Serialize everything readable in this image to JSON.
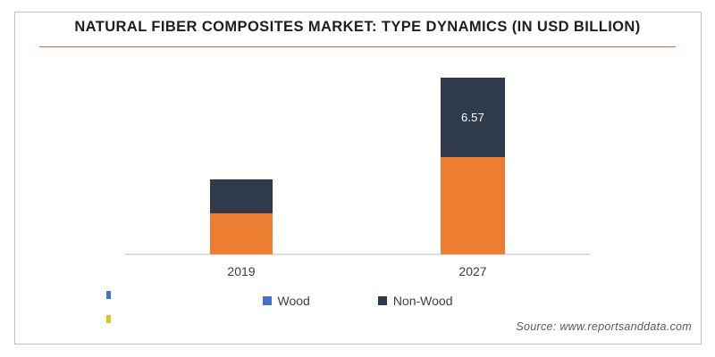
{
  "title": "NATURAL FIBER COMPOSITES MARKET: TYPE DYNAMICS (IN USD BILLION)",
  "source_note": "Source: www.reportsanddata.com",
  "colors": {
    "bar_bottom_orange": "#ed7d31",
    "bar_top_navy": "#2f3b4b",
    "legend_wood_swatch": "#4472c4",
    "legend_nonwood_swatch": "#2f3b4b",
    "title_rule": "#ce6f4a",
    "axis_line": "#dcdcdc",
    "stray_mark_blue": "#4472c4",
    "stray_mark_yellow": "#e2c01e",
    "data_label_text": "#ffffff"
  },
  "legend": {
    "items": [
      {
        "label": "Wood",
        "color": "#4472c4"
      },
      {
        "label": "Non-Wood",
        "color": "#2f3b4b"
      }
    ]
  },
  "chart_data": {
    "type": "bar",
    "stacked": true,
    "title": "NATURAL FIBER COMPOSITES MARKET: TYPE DYNAMICS (IN USD BILLION)",
    "categories": [
      "2019",
      "2027"
    ],
    "series": [
      {
        "name": "Wood",
        "color": "#ed7d31",
        "values": [
          3.4,
          8.05
        ],
        "labels": [
          "",
          ""
        ],
        "values_estimated": true
      },
      {
        "name": "Non-Wood",
        "color": "#2f3b4b",
        "values": [
          2.8,
          6.57
        ],
        "labels": [
          "",
          "6.57"
        ]
      }
    ],
    "visible_data_labels": [
      "6.57"
    ],
    "xlabel": "",
    "ylabel": "",
    "ylim": [
      0,
      15
    ],
    "y_axis_shown": false,
    "grid": false,
    "legend_position": "bottom-center"
  }
}
